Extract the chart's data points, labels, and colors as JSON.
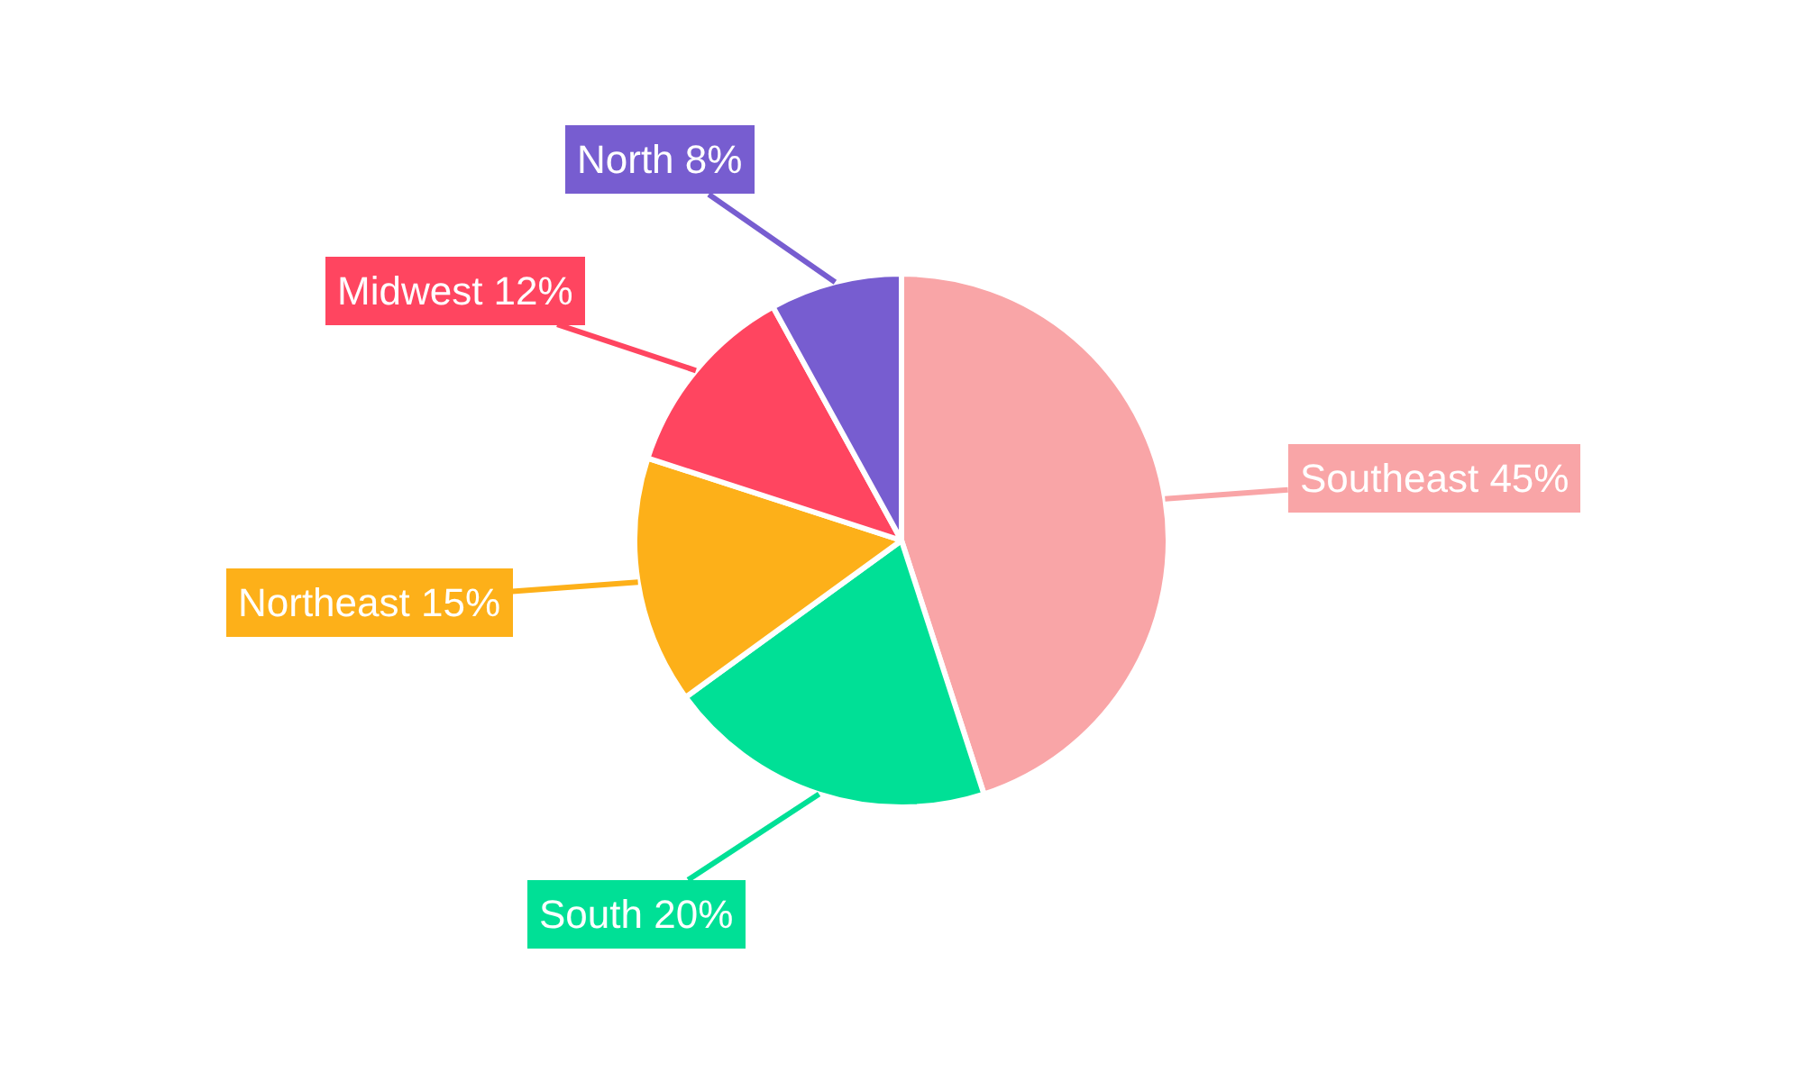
{
  "chart_data": {
    "type": "pie",
    "categories": [
      "Southeast",
      "South",
      "Northeast",
      "Midwest",
      "North"
    ],
    "values": [
      45,
      20,
      15,
      12,
      8
    ],
    "value_labels": [
      "45%",
      "20%",
      "15%",
      "12%",
      "8%"
    ],
    "colors": [
      "#f9a5a7",
      "#00e096",
      "#fdb019",
      "#ff4560",
      "#775dd0"
    ],
    "legend": false
  }
}
